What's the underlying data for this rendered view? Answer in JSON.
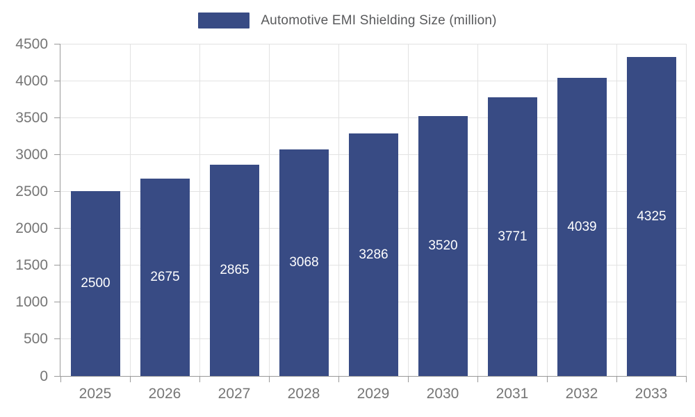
{
  "legend": {
    "label": "Automotive EMI Shielding Size (million)"
  },
  "chart_data": {
    "type": "bar",
    "title": "",
    "series_name": "Automotive EMI Shielding Size (million)",
    "categories": [
      "2025",
      "2026",
      "2027",
      "2028",
      "2029",
      "2030",
      "2031",
      "2032",
      "2033"
    ],
    "values": [
      2500,
      2675,
      2865,
      3068,
      3286,
      3520,
      3771,
      4039,
      4325
    ],
    "xlabel": "",
    "ylabel": "",
    "ylim": [
      0,
      4500
    ],
    "ytick_step": 500,
    "yticks": [
      0,
      500,
      1000,
      1500,
      2000,
      2500,
      3000,
      3500,
      4000,
      4500
    ],
    "grid": true,
    "value_labels_position": "inside-center",
    "legend_position": "top-center",
    "colors": {
      "bar": "#384B84",
      "grid": "#E2E2E2",
      "axis": "#999999",
      "tick_label": "#757575",
      "value_label": "#FFFFFF",
      "legend_text": "#58595B",
      "background": "#FFFFFF"
    }
  }
}
